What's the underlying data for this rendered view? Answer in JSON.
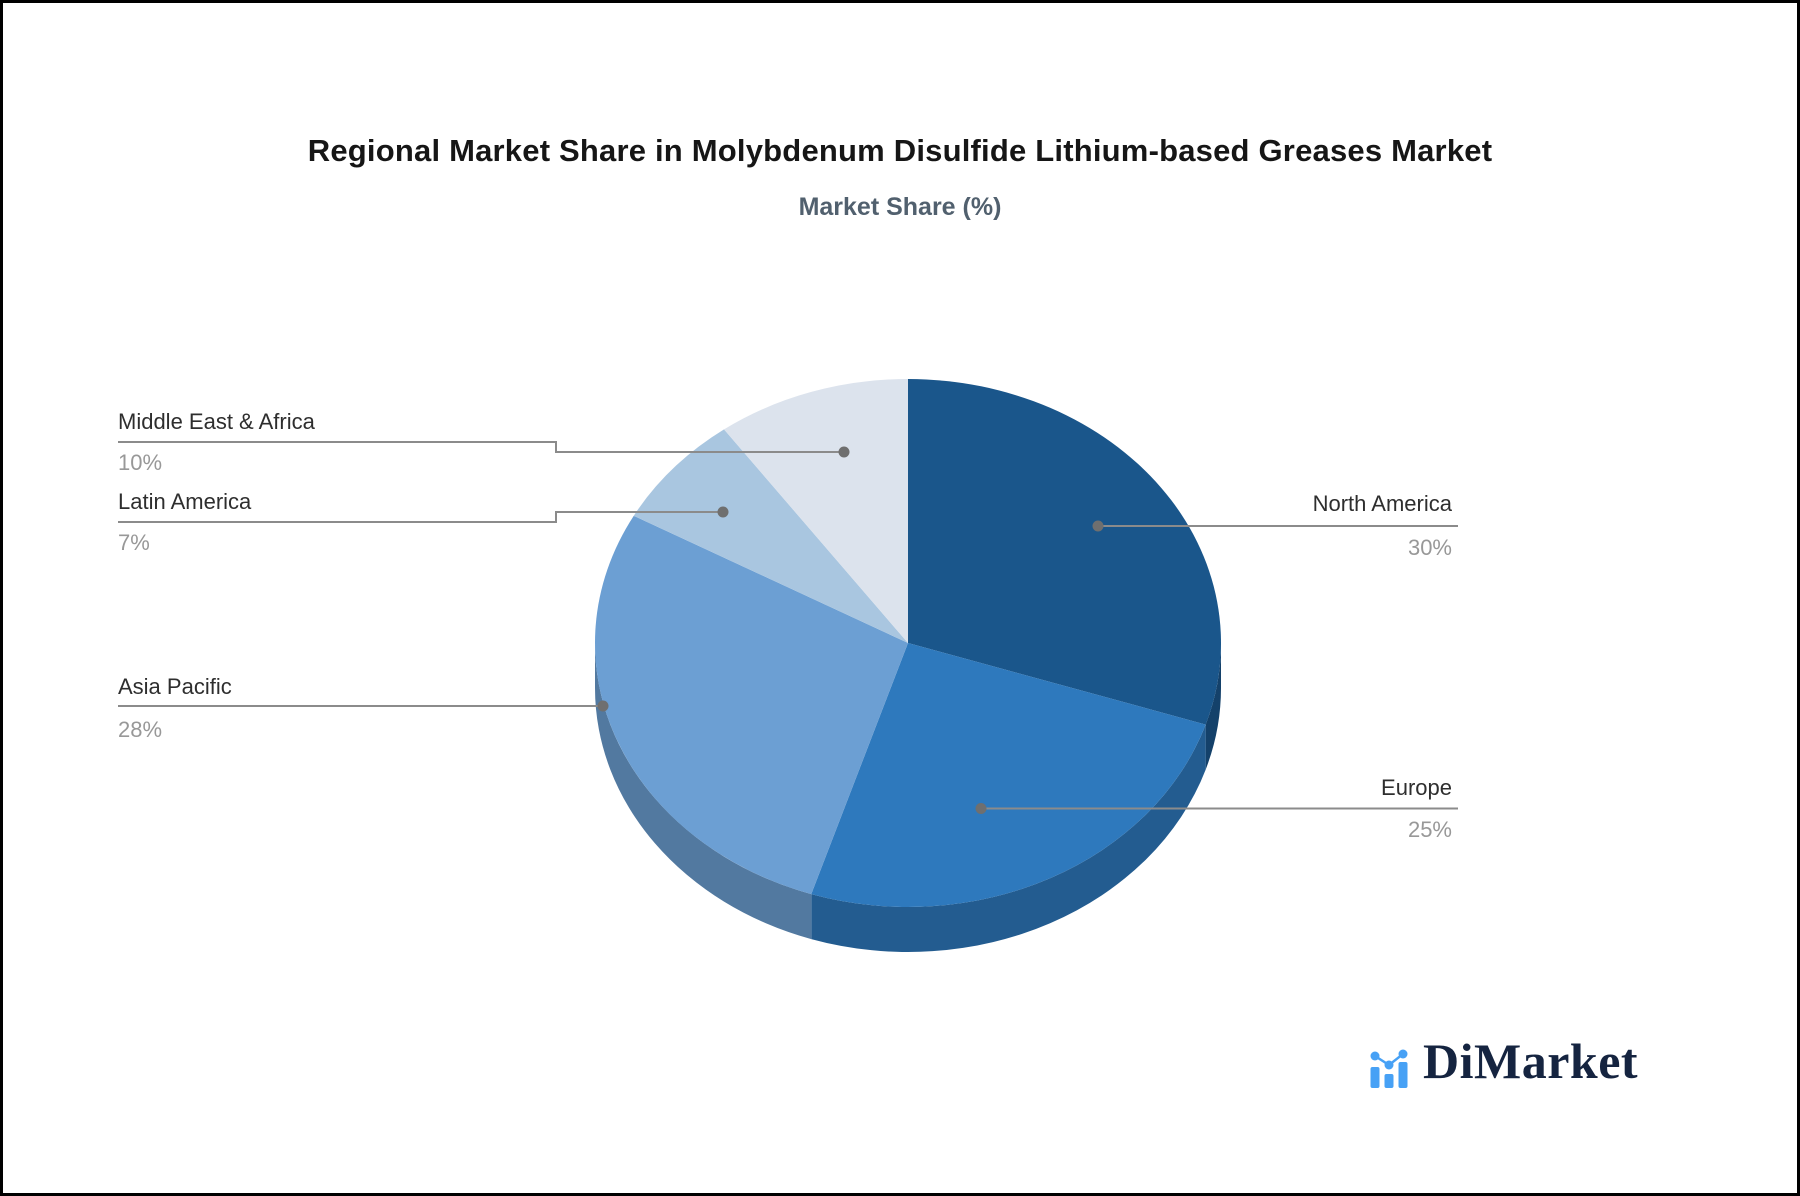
{
  "header": {
    "title": "Regional Market Share in Molybdenum Disulfide Lithium-based Greases Market",
    "subtitle": "Market Share (%)"
  },
  "chart_data": {
    "type": "pie",
    "style": "3d-pie",
    "title": "Regional Market Share in Molybdenum Disulfide Lithium-based Greases Market",
    "subtitle": "Market Share (%)",
    "labels": [
      "North America",
      "Europe",
      "Asia Pacific",
      "Latin America",
      "Middle East & Africa"
    ],
    "values": [
      30,
      25,
      28,
      7,
      10
    ],
    "unit": "%",
    "colors": [
      "#1a568b",
      "#2e79bd",
      "#6c9fd3",
      "#a9c6e0",
      "#dce3ed"
    ],
    "start_angle_deg": -90,
    "direction": "clockwise",
    "legend_position": "callouts",
    "leader_line_color": "#8b8b8b",
    "leader_dot_color": "#6f6f6f"
  },
  "callouts": [
    {
      "label": "North America",
      "value_text": "30%",
      "side": "right"
    },
    {
      "label": "Europe",
      "value_text": "25%",
      "side": "right"
    },
    {
      "label": "Asia Pacific",
      "value_text": "28%",
      "side": "left"
    },
    {
      "label": "Latin America",
      "value_text": "7%",
      "side": "left"
    },
    {
      "label": "Middle East & Africa",
      "value_text": "10%",
      "side": "left"
    }
  ],
  "logo": {
    "text": "DiMarket",
    "icon": "bar-line-chart-icon",
    "icon_color": "#47a1f5",
    "text_color": "#152440"
  }
}
